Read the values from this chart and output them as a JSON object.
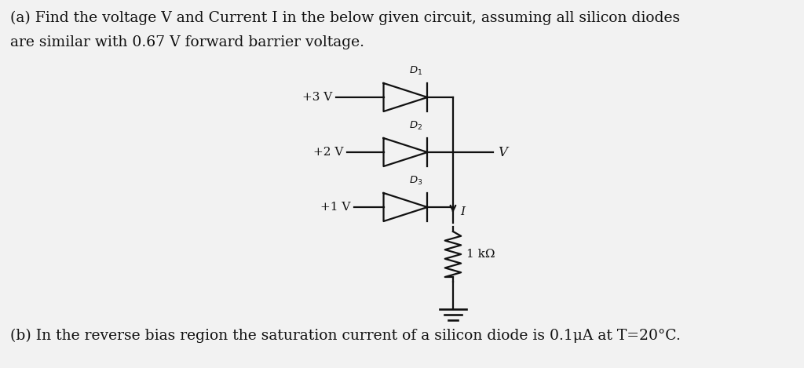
{
  "title_line1": "(a) Find the voltage V and Current I in the below given circuit, assuming all silicon diodes",
  "title_line2": "are similar with 0.67 V forward barrier voltage.",
  "bottom_text": "(b) In the reverse bias region the saturation current of a silicon diode is 0.1μA at T=20°C.",
  "bg_color": "#f2f2f2",
  "text_color": "#111111",
  "circuit_color": "#111111",
  "labels": {
    "D1": "$D_1$",
    "D2": "$D_2$",
    "D3": "$D_3$",
    "V3": "+3 V",
    "V2": "+2 V",
    "V1": "+1 V",
    "R": "1 kΩ",
    "V_label": "V",
    "I_label": "I"
  },
  "font_size_title": 13.5,
  "font_size_circuit": 11,
  "font_size_small": 9.5
}
